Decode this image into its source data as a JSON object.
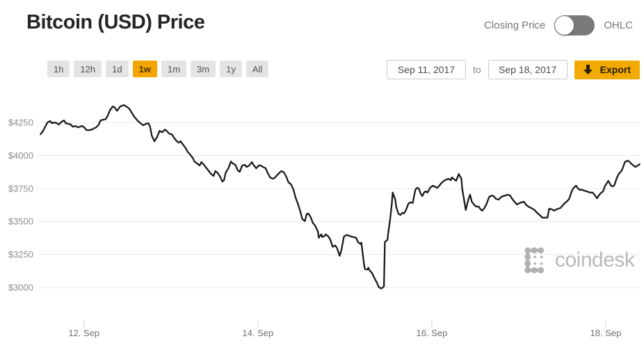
{
  "header": {
    "title": "Bitcoin (USD) Price",
    "toggle_left_label": "Closing Price",
    "toggle_right_label": "OHLC",
    "toggle_state": "left"
  },
  "toolbar": {
    "ranges": [
      "1h",
      "12h",
      "1d",
      "1w",
      "1m",
      "3m",
      "1y",
      "All"
    ],
    "active_range": "1w",
    "date_from": "Sep 11, 2017",
    "to_label": "to",
    "date_to": "Sep 18, 2017",
    "export_label": "Export"
  },
  "watermark": {
    "text": "coindesk",
    "icon": "coindesk-dots-logo"
  },
  "colors": {
    "accent_active_range": "#f4a504",
    "export_button": "#f2a900",
    "line": "#1a1a1a",
    "grid": "#e8e8e8",
    "y_axis_label": "#8c8c8c",
    "x_axis_label": "#6f6f6f",
    "tick_mark": "#cccccc",
    "toggle_pill": "#7a7a7a",
    "watermark": "#b9b9b9",
    "button_bg": "#e4e4e4"
  },
  "chart_data": {
    "type": "line",
    "title": "Bitcoin (USD) Price",
    "xlabel": "",
    "ylabel": "",
    "grid": "horizontal",
    "legend": "none",
    "x_unit": "day of September 2017 (fractional)",
    "y_unit": "USD",
    "xlim": [
      11.49,
      18.4
    ],
    "ylim": [
      2900,
      4440
    ],
    "x_ticks": [
      {
        "t": 12,
        "label": "12. Sep"
      },
      {
        "t": 14,
        "label": "14. Sep"
      },
      {
        "t": 16,
        "label": "16. Sep"
      },
      {
        "t": 18,
        "label": "18. Sep"
      }
    ],
    "y_ticks": [
      {
        "value": 4250,
        "label": "$4250"
      },
      {
        "value": 4000,
        "label": "$4000"
      },
      {
        "value": 3750,
        "label": "$3750"
      },
      {
        "value": 3500,
        "label": "$3500"
      },
      {
        "value": 3250,
        "label": "$3250"
      },
      {
        "value": 3000,
        "label": "$3000"
      }
    ],
    "series": [
      {
        "name": "Closing Price (USD)",
        "points": [
          [
            11.5,
            4161
          ],
          [
            11.53,
            4187
          ],
          [
            11.55,
            4213
          ],
          [
            11.58,
            4250
          ],
          [
            11.61,
            4261
          ],
          [
            11.63,
            4245
          ],
          [
            11.66,
            4250
          ],
          [
            11.69,
            4245
          ],
          [
            11.71,
            4234
          ],
          [
            11.74,
            4255
          ],
          [
            11.77,
            4266
          ],
          [
            11.79,
            4245
          ],
          [
            11.82,
            4240
          ],
          [
            11.85,
            4234
          ],
          [
            11.87,
            4218
          ],
          [
            11.9,
            4224
          ],
          [
            11.93,
            4213
          ],
          [
            11.95,
            4218
          ],
          [
            11.98,
            4224
          ],
          [
            12.01,
            4208
          ],
          [
            12.03,
            4192
          ],
          [
            12.06,
            4192
          ],
          [
            12.09,
            4197
          ],
          [
            12.11,
            4203
          ],
          [
            12.14,
            4213
          ],
          [
            12.17,
            4234
          ],
          [
            12.19,
            4266
          ],
          [
            12.22,
            4271
          ],
          [
            12.25,
            4276
          ],
          [
            12.27,
            4297
          ],
          [
            12.3,
            4345
          ],
          [
            12.33,
            4371
          ],
          [
            12.35,
            4366
          ],
          [
            12.38,
            4339
          ],
          [
            12.41,
            4366
          ],
          [
            12.43,
            4376
          ],
          [
            12.46,
            4382
          ],
          [
            12.49,
            4371
          ],
          [
            12.52,
            4355
          ],
          [
            12.55,
            4324
          ],
          [
            12.58,
            4292
          ],
          [
            12.62,
            4261
          ],
          [
            12.65,
            4245
          ],
          [
            12.68,
            4229
          ],
          [
            12.71,
            4239
          ],
          [
            12.74,
            4245
          ],
          [
            12.76,
            4218
          ],
          [
            12.78,
            4150
          ],
          [
            12.81,
            4108
          ],
          [
            12.84,
            4140
          ],
          [
            12.87,
            4187
          ],
          [
            12.9,
            4176
          ],
          [
            12.93,
            4197
          ],
          [
            12.95,
            4187
          ],
          [
            12.98,
            4166
          ],
          [
            13.01,
            4160
          ],
          [
            13.03,
            4140
          ],
          [
            13.06,
            4113
          ],
          [
            13.09,
            4097
          ],
          [
            13.11,
            4108
          ],
          [
            13.14,
            4082
          ],
          [
            13.17,
            4055
          ],
          [
            13.19,
            4029
          ],
          [
            13.22,
            4008
          ],
          [
            13.25,
            3982
          ],
          [
            13.27,
            3955
          ],
          [
            13.3,
            3940
          ],
          [
            13.33,
            3924
          ],
          [
            13.35,
            3950
          ],
          [
            13.38,
            3929
          ],
          [
            13.41,
            3903
          ],
          [
            13.43,
            3887
          ],
          [
            13.46,
            3861
          ],
          [
            13.49,
            3845
          ],
          [
            13.51,
            3882
          ],
          [
            13.54,
            3866
          ],
          [
            13.57,
            3834
          ],
          [
            13.59,
            3803
          ],
          [
            13.61,
            3813
          ],
          [
            13.63,
            3871
          ],
          [
            13.66,
            3903
          ],
          [
            13.69,
            3955
          ],
          [
            13.71,
            3940
          ],
          [
            13.74,
            3929
          ],
          [
            13.77,
            3887
          ],
          [
            13.79,
            3876
          ],
          [
            13.82,
            3924
          ],
          [
            13.85,
            3929
          ],
          [
            13.87,
            3913
          ],
          [
            13.9,
            3924
          ],
          [
            13.93,
            3950
          ],
          [
            13.95,
            3929
          ],
          [
            13.98,
            3903
          ],
          [
            14.01,
            3924
          ],
          [
            14.03,
            3924
          ],
          [
            14.06,
            3913
          ],
          [
            14.09,
            3903
          ],
          [
            14.11,
            3871
          ],
          [
            14.14,
            3834
          ],
          [
            14.17,
            3824
          ],
          [
            14.19,
            3829
          ],
          [
            14.22,
            3850
          ],
          [
            14.25,
            3871
          ],
          [
            14.27,
            3882
          ],
          [
            14.3,
            3871
          ],
          [
            14.33,
            3834
          ],
          [
            14.35,
            3798
          ],
          [
            14.38,
            3782
          ],
          [
            14.41,
            3740
          ],
          [
            14.43,
            3687
          ],
          [
            14.46,
            3634
          ],
          [
            14.49,
            3571
          ],
          [
            14.51,
            3519
          ],
          [
            14.54,
            3503
          ],
          [
            14.56,
            3556
          ],
          [
            14.58,
            3561
          ],
          [
            14.61,
            3529
          ],
          [
            14.63,
            3492
          ],
          [
            14.66,
            3466
          ],
          [
            14.69,
            3424
          ],
          [
            14.7,
            3377
          ],
          [
            14.73,
            3403
          ],
          [
            14.74,
            3382
          ],
          [
            14.77,
            3392
          ],
          [
            14.78,
            3403
          ],
          [
            14.81,
            3387
          ],
          [
            14.83,
            3366
          ],
          [
            14.86,
            3308
          ],
          [
            14.89,
            3318
          ],
          [
            14.91,
            3298
          ],
          [
            14.94,
            3240
          ],
          [
            14.96,
            3282
          ],
          [
            14.99,
            3387
          ],
          [
            15.02,
            3398
          ],
          [
            15.05,
            3392
          ],
          [
            15.07,
            3387
          ],
          [
            15.1,
            3382
          ],
          [
            15.13,
            3377
          ],
          [
            15.15,
            3345
          ],
          [
            15.18,
            3329
          ],
          [
            15.19,
            3340
          ],
          [
            15.22,
            3177
          ],
          [
            15.23,
            3140
          ],
          [
            15.26,
            3135
          ],
          [
            15.27,
            3150
          ],
          [
            15.29,
            3124
          ],
          [
            15.31,
            3113
          ],
          [
            15.34,
            3071
          ],
          [
            15.37,
            3035
          ],
          [
            15.39,
            3003
          ],
          [
            15.42,
            2992
          ],
          [
            15.44,
            3003
          ],
          [
            15.45,
            3008
          ],
          [
            15.46,
            3345
          ],
          [
            15.47,
            3350
          ],
          [
            15.49,
            3361
          ],
          [
            15.5,
            3419
          ],
          [
            15.52,
            3513
          ],
          [
            15.54,
            3634
          ],
          [
            15.55,
            3719
          ],
          [
            15.58,
            3666
          ],
          [
            15.59,
            3613
          ],
          [
            15.61,
            3571
          ],
          [
            15.62,
            3556
          ],
          [
            15.64,
            3550
          ],
          [
            15.66,
            3566
          ],
          [
            15.68,
            3561
          ],
          [
            15.7,
            3582
          ],
          [
            15.73,
            3634
          ],
          [
            15.75,
            3645
          ],
          [
            15.78,
            3640
          ],
          [
            15.81,
            3740
          ],
          [
            15.83,
            3755
          ],
          [
            15.85,
            3750
          ],
          [
            15.87,
            3713
          ],
          [
            15.89,
            3692
          ],
          [
            15.91,
            3719
          ],
          [
            15.93,
            3729
          ],
          [
            15.95,
            3719
          ],
          [
            15.98,
            3755
          ],
          [
            16.01,
            3771
          ],
          [
            16.03,
            3766
          ],
          [
            16.06,
            3755
          ],
          [
            16.08,
            3766
          ],
          [
            16.11,
            3792
          ],
          [
            16.15,
            3813
          ],
          [
            16.19,
            3824
          ],
          [
            16.22,
            3813
          ],
          [
            16.23,
            3834
          ],
          [
            16.26,
            3818
          ],
          [
            16.28,
            3808
          ],
          [
            16.31,
            3860
          ],
          [
            16.34,
            3824
          ],
          [
            16.35,
            3745
          ],
          [
            16.39,
            3587
          ],
          [
            16.42,
            3666
          ],
          [
            16.44,
            3703
          ],
          [
            16.46,
            3650
          ],
          [
            16.49,
            3624
          ],
          [
            16.51,
            3613
          ],
          [
            16.54,
            3613
          ],
          [
            16.56,
            3592
          ],
          [
            16.58,
            3582
          ],
          [
            16.61,
            3608
          ],
          [
            16.63,
            3634
          ],
          [
            16.66,
            3687
          ],
          [
            16.69,
            3697
          ],
          [
            16.71,
            3692
          ],
          [
            16.74,
            3671
          ],
          [
            16.77,
            3666
          ],
          [
            16.79,
            3682
          ],
          [
            16.82,
            3692
          ],
          [
            16.85,
            3697
          ],
          [
            16.87,
            3703
          ],
          [
            16.9,
            3697
          ],
          [
            16.93,
            3666
          ],
          [
            16.95,
            3650
          ],
          [
            16.98,
            3629
          ],
          [
            17.01,
            3640
          ],
          [
            17.03,
            3645
          ],
          [
            17.06,
            3650
          ],
          [
            17.08,
            3629
          ],
          [
            17.11,
            3613
          ],
          [
            17.14,
            3603
          ],
          [
            17.18,
            3587
          ],
          [
            17.21,
            3566
          ],
          [
            17.24,
            3550
          ],
          [
            17.27,
            3529
          ],
          [
            17.3,
            3529
          ],
          [
            17.33,
            3529
          ],
          [
            17.35,
            3598
          ],
          [
            17.38,
            3592
          ],
          [
            17.41,
            3582
          ],
          [
            17.43,
            3592
          ],
          [
            17.46,
            3598
          ],
          [
            17.48,
            3603
          ],
          [
            17.5,
            3619
          ],
          [
            17.53,
            3640
          ],
          [
            17.55,
            3650
          ],
          [
            17.58,
            3671
          ],
          [
            17.6,
            3713
          ],
          [
            17.62,
            3745
          ],
          [
            17.64,
            3761
          ],
          [
            17.66,
            3771
          ],
          [
            17.68,
            3750
          ],
          [
            17.7,
            3740
          ],
          [
            17.73,
            3740
          ],
          [
            17.75,
            3734
          ],
          [
            17.78,
            3729
          ],
          [
            17.8,
            3724
          ],
          [
            17.82,
            3719
          ],
          [
            17.85,
            3719
          ],
          [
            17.87,
            3703
          ],
          [
            17.9,
            3676
          ],
          [
            17.92,
            3697
          ],
          [
            17.94,
            3713
          ],
          [
            17.97,
            3729
          ],
          [
            17.99,
            3766
          ],
          [
            18.02,
            3798
          ],
          [
            18.03,
            3808
          ],
          [
            18.06,
            3771
          ],
          [
            18.08,
            3766
          ],
          [
            18.1,
            3776
          ],
          [
            18.13,
            3834
          ],
          [
            18.15,
            3861
          ],
          [
            18.18,
            3882
          ],
          [
            18.2,
            3913
          ],
          [
            18.22,
            3950
          ],
          [
            18.25,
            3961
          ],
          [
            18.27,
            3955
          ],
          [
            18.3,
            3934
          ],
          [
            18.32,
            3924
          ],
          [
            18.34,
            3913
          ],
          [
            18.37,
            3924
          ],
          [
            18.39,
            3934
          ]
        ]
      }
    ]
  }
}
